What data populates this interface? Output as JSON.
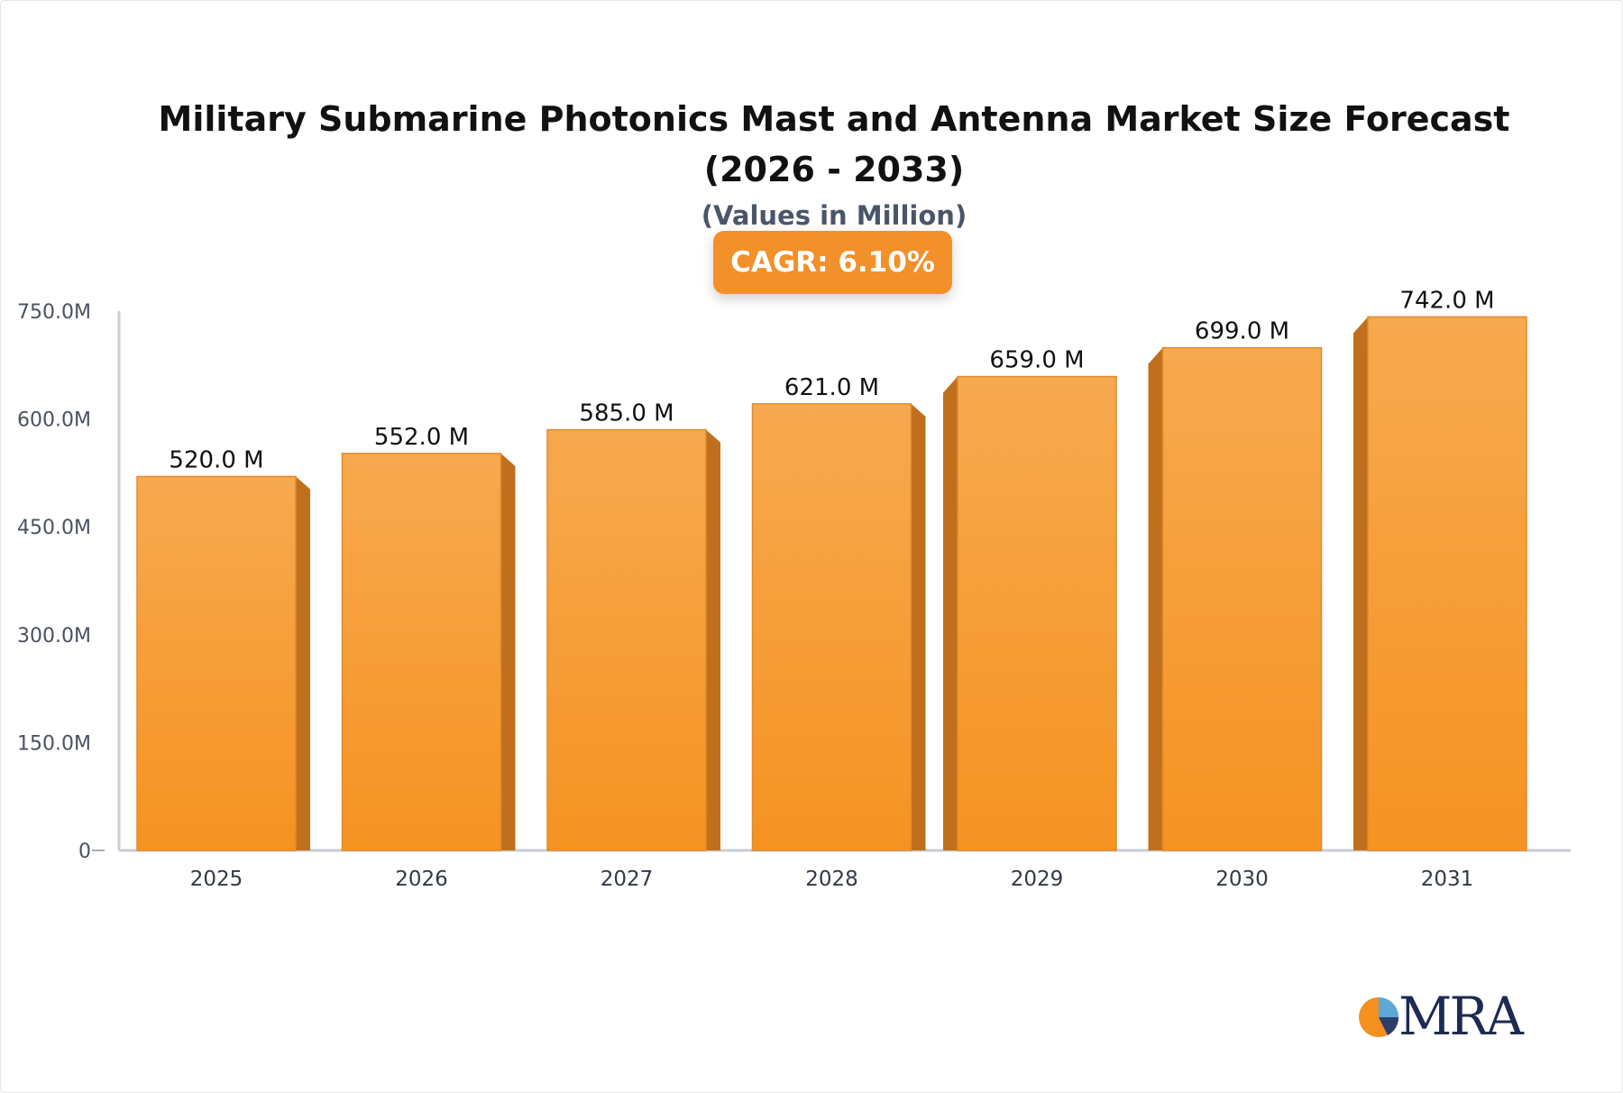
{
  "chart_data": {
    "type": "bar",
    "title": "Military Submarine Photonics Mast and Antenna Market Size Forecast (2026 - 2033)",
    "subtitle": "(Values in Million)",
    "badge": "CAGR: 6.10%",
    "categories": [
      "2025",
      "2026",
      "2027",
      "2028",
      "2029",
      "2030",
      "2031"
    ],
    "values": [
      520.0,
      552.0,
      585.0,
      621.0,
      659.0,
      699.0,
      742.0
    ],
    "data_labels": [
      "520.0 M",
      "552.0 M",
      "585.0 M",
      "621.0 M",
      "659.0 M",
      "699.0 M",
      "742.0 M"
    ],
    "yticks": [
      0,
      150,
      300,
      450,
      600,
      750
    ],
    "ytick_labels": [
      "0",
      "150.0M",
      "300.0M",
      "450.0M",
      "600.0M",
      "750.0M"
    ],
    "ylim": [
      0,
      750
    ],
    "xlabel": "",
    "ylabel": "",
    "grid": false,
    "legend": "none",
    "colors": {
      "bar_front_top": "#f7a94f",
      "bar_front_bottom": "#f59322",
      "bar_side": "#c0701d",
      "bar_outline": "#e08a2c",
      "axis": "#c8ccd4",
      "badge": "#f3902a"
    }
  },
  "logo": {
    "text": "MRA"
  }
}
